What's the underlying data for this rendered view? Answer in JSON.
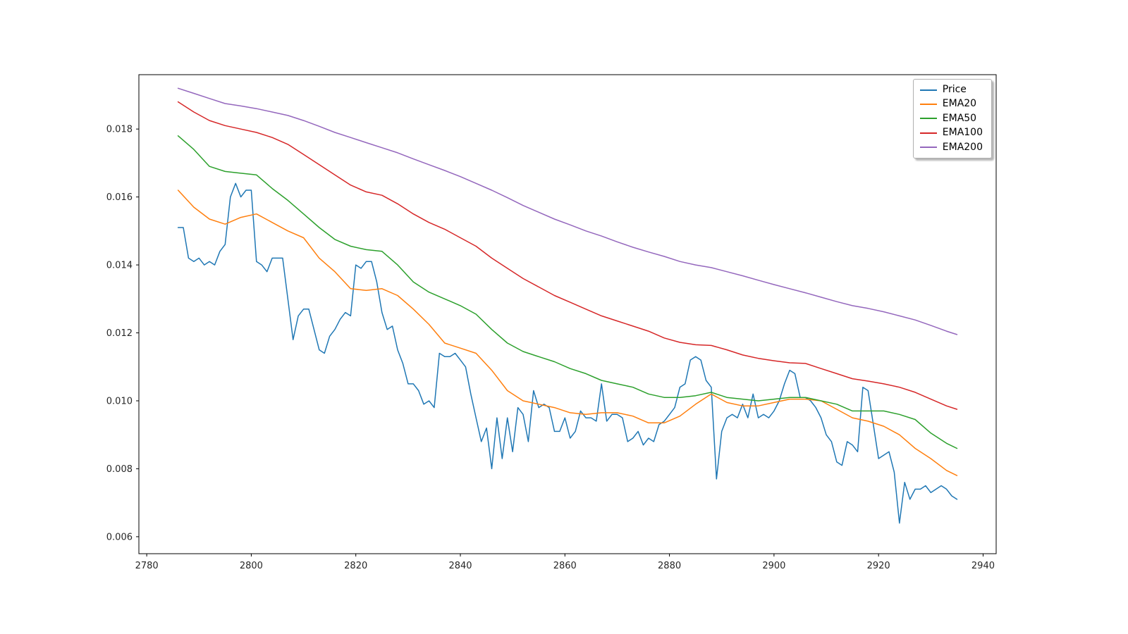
{
  "figure": {
    "background": "#ffffff",
    "text_color": "#262626"
  },
  "chart_data": {
    "type": "line",
    "title": "",
    "xlabel": "",
    "ylabel": "",
    "grid": false,
    "legend_position": "upper right",
    "xlim": [
      2778.5,
      2942.5
    ],
    "ylim": [
      0.0055,
      0.0196
    ],
    "xticks": [
      2780,
      2800,
      2820,
      2840,
      2860,
      2880,
      2900,
      2920,
      2940
    ],
    "yticks": [
      "0.006",
      "0.008",
      "0.010",
      "0.012",
      "0.014",
      "0.016",
      "0.018"
    ],
    "series": [
      {
        "name": "Price",
        "color": "#1f77b4",
        "x_start": 2786,
        "x_step": 1,
        "y": [
          0.0151,
          0.0151,
          0.0142,
          0.0141,
          0.0142,
          0.014,
          0.0141,
          0.014,
          0.0144,
          0.0146,
          0.016,
          0.0164,
          0.016,
          0.0162,
          0.0162,
          0.0141,
          0.014,
          0.0138,
          0.0142,
          0.0142,
          0.0142,
          0.013,
          0.0118,
          0.0125,
          0.0127,
          0.0127,
          0.0121,
          0.0115,
          0.0114,
          0.0119,
          0.0121,
          0.0124,
          0.0126,
          0.0125,
          0.014,
          0.0139,
          0.0141,
          0.0141,
          0.0135,
          0.0126,
          0.0121,
          0.0122,
          0.0115,
          0.0111,
          0.0105,
          0.0105,
          0.0103,
          0.0099,
          0.01,
          0.0098,
          0.0114,
          0.0113,
          0.0113,
          0.0114,
          0.0112,
          0.011,
          0.0102,
          0.0095,
          0.0088,
          0.0092,
          0.008,
          0.0095,
          0.0083,
          0.0095,
          0.0085,
          0.0098,
          0.0096,
          0.0088,
          0.0103,
          0.0098,
          0.0099,
          0.0098,
          0.0091,
          0.0091,
          0.0095,
          0.0089,
          0.0091,
          0.0097,
          0.0095,
          0.0095,
          0.0094,
          0.0105,
          0.0094,
          0.0096,
          0.0096,
          0.0095,
          0.0088,
          0.0089,
          0.0091,
          0.0087,
          0.0089,
          0.0088,
          0.0093,
          0.0094,
          0.0096,
          0.0098,
          0.0104,
          0.0105,
          0.0112,
          0.0113,
          0.0112,
          0.0106,
          0.0104,
          0.0077,
          0.0091,
          0.0095,
          0.0096,
          0.0095,
          0.0099,
          0.0095,
          0.0102,
          0.0095,
          0.0096,
          0.0095,
          0.0097,
          0.01,
          0.0105,
          0.0109,
          0.0108,
          0.0101,
          0.0101,
          0.01,
          0.0098,
          0.0095,
          0.009,
          0.0088,
          0.0082,
          0.0081,
          0.0088,
          0.0087,
          0.0085,
          0.0104,
          0.0103,
          0.0093,
          0.0083,
          0.0084,
          0.0085,
          0.0079,
          0.0064,
          0.0076,
          0.0071,
          0.0074,
          0.0074,
          0.0075,
          0.0073,
          0.0074,
          0.0075,
          0.0074,
          0.0072,
          0.0071
        ]
      },
      {
        "name": "EMA20",
        "color": "#ff7f0e",
        "x": [
          2786,
          2789,
          2792,
          2795,
          2798,
          2801,
          2804,
          2807,
          2810,
          2813,
          2816,
          2819,
          2822,
          2825,
          2828,
          2831,
          2834,
          2837,
          2840,
          2843,
          2846,
          2849,
          2852,
          2855,
          2858,
          2861,
          2864,
          2867,
          2870,
          2873,
          2876,
          2879,
          2882,
          2885,
          2888,
          2891,
          2894,
          2897,
          2900,
          2903,
          2906,
          2909,
          2912,
          2915,
          2918,
          2921,
          2924,
          2927,
          2930,
          2933,
          2935
        ],
        "y": [
          0.0162,
          0.0157,
          0.01535,
          0.0152,
          0.0154,
          0.0155,
          0.01525,
          0.015,
          0.0148,
          0.0142,
          0.0138,
          0.0133,
          0.01325,
          0.0133,
          0.0131,
          0.0127,
          0.01225,
          0.0117,
          0.01155,
          0.0114,
          0.0109,
          0.0103,
          0.01,
          0.0099,
          0.0098,
          0.00965,
          0.0096,
          0.00965,
          0.00965,
          0.00955,
          0.00935,
          0.00935,
          0.00955,
          0.0099,
          0.0102,
          0.00995,
          0.00985,
          0.00985,
          0.00995,
          0.01005,
          0.01005,
          0.01,
          0.00975,
          0.0095,
          0.0094,
          0.00925,
          0.009,
          0.0086,
          0.0083,
          0.00795,
          0.0078
        ]
      },
      {
        "name": "EMA50",
        "color": "#2ca02c",
        "x": [
          2786,
          2789,
          2792,
          2795,
          2798,
          2801,
          2804,
          2807,
          2810,
          2813,
          2816,
          2819,
          2822,
          2825,
          2828,
          2831,
          2834,
          2837,
          2840,
          2843,
          2846,
          2849,
          2852,
          2855,
          2858,
          2861,
          2864,
          2867,
          2870,
          2873,
          2876,
          2879,
          2882,
          2885,
          2888,
          2891,
          2894,
          2897,
          2900,
          2903,
          2906,
          2909,
          2912,
          2915,
          2918,
          2921,
          2924,
          2927,
          2930,
          2933,
          2935
        ],
        "y": [
          0.0178,
          0.0174,
          0.0169,
          0.01675,
          0.0167,
          0.01665,
          0.01625,
          0.0159,
          0.0155,
          0.0151,
          0.01475,
          0.01455,
          0.01445,
          0.0144,
          0.014,
          0.0135,
          0.0132,
          0.013,
          0.0128,
          0.01255,
          0.0121,
          0.0117,
          0.01145,
          0.0113,
          0.01115,
          0.01095,
          0.0108,
          0.0106,
          0.0105,
          0.0104,
          0.0102,
          0.0101,
          0.0101,
          0.01015,
          0.01025,
          0.0101,
          0.01005,
          0.01,
          0.01005,
          0.0101,
          0.0101,
          0.01,
          0.0099,
          0.0097,
          0.0097,
          0.0097,
          0.0096,
          0.00945,
          0.00905,
          0.00875,
          0.0086
        ]
      },
      {
        "name": "EMA100",
        "color": "#d62728",
        "x": [
          2786,
          2789,
          2792,
          2795,
          2798,
          2801,
          2804,
          2807,
          2810,
          2813,
          2816,
          2819,
          2822,
          2825,
          2828,
          2831,
          2834,
          2837,
          2840,
          2843,
          2846,
          2849,
          2852,
          2855,
          2858,
          2861,
          2864,
          2867,
          2870,
          2873,
          2876,
          2879,
          2882,
          2885,
          2888,
          2891,
          2894,
          2897,
          2900,
          2903,
          2906,
          2909,
          2912,
          2915,
          2918,
          2921,
          2924,
          2927,
          2930,
          2933,
          2935
        ],
        "y": [
          0.0188,
          0.0185,
          0.01825,
          0.0181,
          0.018,
          0.0179,
          0.01775,
          0.01755,
          0.01725,
          0.01695,
          0.01665,
          0.01635,
          0.01615,
          0.01605,
          0.0158,
          0.0155,
          0.01525,
          0.01505,
          0.0148,
          0.01455,
          0.0142,
          0.0139,
          0.0136,
          0.01335,
          0.0131,
          0.0129,
          0.0127,
          0.0125,
          0.01235,
          0.0122,
          0.01205,
          0.01185,
          0.01172,
          0.01165,
          0.01163,
          0.0115,
          0.01135,
          0.01125,
          0.01118,
          0.01112,
          0.0111,
          0.01095,
          0.0108,
          0.01065,
          0.01058,
          0.0105,
          0.0104,
          0.01025,
          0.01005,
          0.00985,
          0.00975
        ]
      },
      {
        "name": "EMA200",
        "color": "#9467bd",
        "x": [
          2786,
          2789,
          2792,
          2795,
          2798,
          2801,
          2804,
          2807,
          2810,
          2813,
          2816,
          2819,
          2822,
          2825,
          2828,
          2831,
          2834,
          2837,
          2840,
          2843,
          2846,
          2849,
          2852,
          2855,
          2858,
          2861,
          2864,
          2867,
          2870,
          2873,
          2876,
          2879,
          2882,
          2885,
          2888,
          2891,
          2894,
          2897,
          2900,
          2903,
          2906,
          2909,
          2912,
          2915,
          2918,
          2921,
          2924,
          2927,
          2930,
          2933,
          2935
        ],
        "y": [
          0.0192,
          0.01905,
          0.0189,
          0.01875,
          0.01868,
          0.0186,
          0.0185,
          0.0184,
          0.01825,
          0.01808,
          0.0179,
          0.01775,
          0.0176,
          0.01745,
          0.0173,
          0.01712,
          0.01695,
          0.01678,
          0.0166,
          0.0164,
          0.0162,
          0.01598,
          0.01575,
          0.01555,
          0.01535,
          0.01518,
          0.015,
          0.01485,
          0.01468,
          0.01452,
          0.01438,
          0.01425,
          0.0141,
          0.014,
          0.01392,
          0.0138,
          0.01368,
          0.01355,
          0.01342,
          0.0133,
          0.01318,
          0.01305,
          0.01292,
          0.0128,
          0.01272,
          0.01262,
          0.0125,
          0.01238,
          0.01222,
          0.01205,
          0.01195
        ]
      }
    ]
  }
}
